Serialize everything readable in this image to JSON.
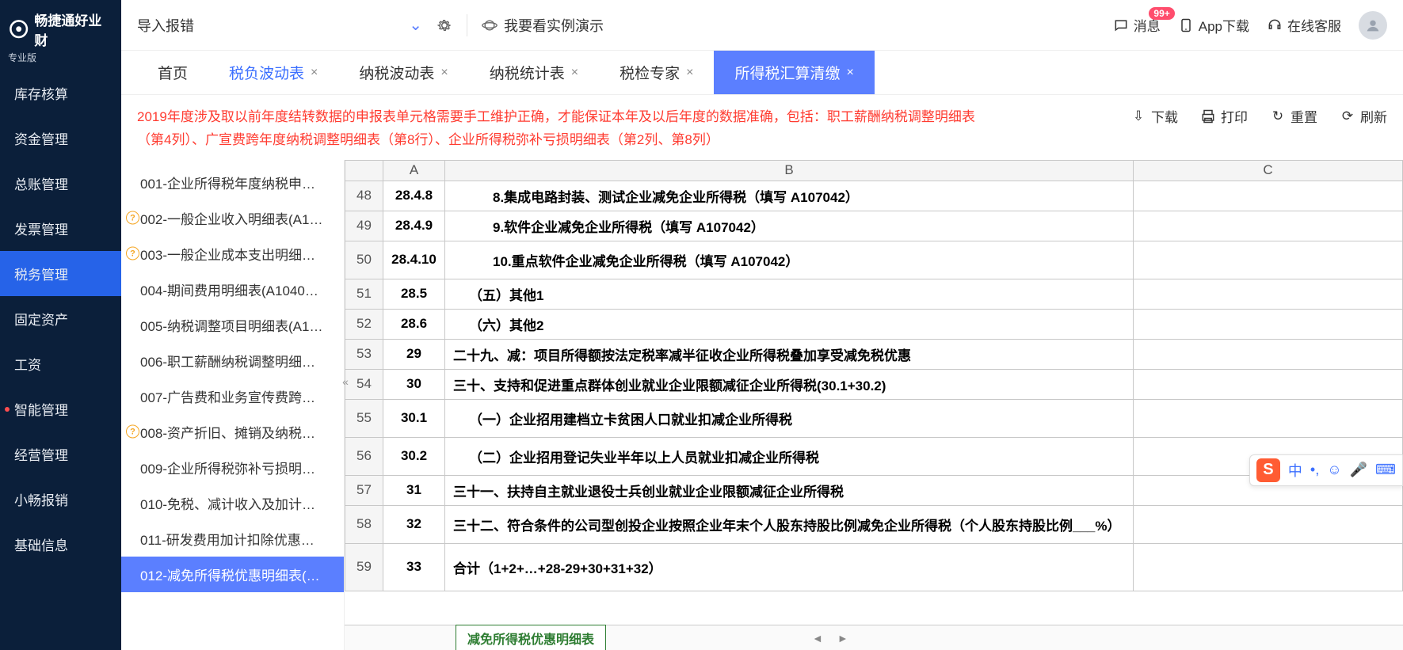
{
  "brand": {
    "name": "畅捷通好业财",
    "edition": "专业版"
  },
  "sidebar": {
    "items": [
      {
        "label": "库存核算",
        "active": false,
        "dot": false
      },
      {
        "label": "资金管理",
        "active": false,
        "dot": false
      },
      {
        "label": "总账管理",
        "active": false,
        "dot": false
      },
      {
        "label": "发票管理",
        "active": false,
        "dot": false
      },
      {
        "label": "税务管理",
        "active": true,
        "dot": false
      },
      {
        "label": "固定资产",
        "active": false,
        "dot": false
      },
      {
        "label": "工资",
        "active": false,
        "dot": false
      },
      {
        "label": "智能管理",
        "active": false,
        "dot": true
      },
      {
        "label": "经营管理",
        "active": false,
        "dot": false
      },
      {
        "label": "小畅报销",
        "active": false,
        "dot": false
      },
      {
        "label": "基础信息",
        "active": false,
        "dot": false
      }
    ]
  },
  "topbar": {
    "import_error": "导入报错",
    "demo": "我要看实例演示",
    "msg": "消息",
    "badge": "99+",
    "app": "App下载",
    "service": "在线客服"
  },
  "tabs": [
    {
      "label": "首页",
      "closable": false,
      "style": ""
    },
    {
      "label": "税负波动表",
      "closable": true,
      "style": "link"
    },
    {
      "label": "纳税波动表",
      "closable": true,
      "style": ""
    },
    {
      "label": "纳税统计表",
      "closable": true,
      "style": ""
    },
    {
      "label": "税检专家",
      "closable": true,
      "style": ""
    },
    {
      "label": "所得税汇算清缴",
      "closable": true,
      "style": "active"
    }
  ],
  "notice": "2019年度涉及取以前年度结转数据的申报表单元格需要手工维护正确，才能保证本年及以后年度的数据准确，包括：职工薪酬纳税调整明细表（第4列）、广宣费跨年度纳税调整明细表（第8行）、企业所得税弥补亏损明细表（第2列、第8列）",
  "actions": {
    "download": "下载",
    "print": "打印",
    "reset": "重置",
    "refresh": "刷新"
  },
  "tree": [
    {
      "label": "001-企业所得税年度纳税申…",
      "warn": false
    },
    {
      "label": "002-一般企业收入明细表(A1…",
      "warn": true
    },
    {
      "label": "003-一般企业成本支出明细…",
      "warn": true
    },
    {
      "label": "004-期间费用明细表(A1040…",
      "warn": false
    },
    {
      "label": "005-纳税调整项目明细表(A1…",
      "warn": false
    },
    {
      "label": "006-职工薪酬纳税调整明细…",
      "warn": false
    },
    {
      "label": "007-广告费和业务宣传费跨…",
      "warn": false
    },
    {
      "label": "008-资产折旧、摊销及纳税…",
      "warn": true
    },
    {
      "label": "009-企业所得税弥补亏损明…",
      "warn": false
    },
    {
      "label": "010-免税、减计收入及加计…",
      "warn": false
    },
    {
      "label": "011-研发费用加计扣除优惠…",
      "warn": false
    },
    {
      "label": "012-减免所得税优惠明细表(…",
      "warn": false,
      "selected": true
    }
  ],
  "sheet": {
    "columns": [
      "A",
      "B",
      "C"
    ],
    "rows": [
      {
        "n": "48",
        "a": "28.4.8",
        "b": "8.集成电路封装、测试企业减免企业所得税（填写 A107042）",
        "indent": 1
      },
      {
        "n": "49",
        "a": "28.4.9",
        "b": "9.软件企业减免企业所得税（填写 A107042）",
        "indent": 1
      },
      {
        "n": "50",
        "a": "28.4.10",
        "b": "10.重点软件企业减免企业所得税（填写 A107042）",
        "indent": 1,
        "tall": true
      },
      {
        "n": "51",
        "a": "28.5",
        "b": "（五）其他1",
        "indent": 2
      },
      {
        "n": "52",
        "a": "28.6",
        "b": "（六）其他2",
        "indent": 2
      },
      {
        "n": "53",
        "a": "29",
        "b": "二十九、减：项目所得额按法定税率减半征收企业所得税叠加享受减免税优惠",
        "indent": 0
      },
      {
        "n": "54",
        "a": "30",
        "b": "三十、支持和促进重点群体创业就业企业限额减征企业所得税(30.1+30.2)",
        "indent": 0
      },
      {
        "n": "55",
        "a": "30.1",
        "b": "（一）企业招用建档立卡贫困人口就业扣减企业所得税",
        "indent": 2,
        "tall": true
      },
      {
        "n": "56",
        "a": "30.2",
        "b": "（二）企业招用登记失业半年以上人员就业扣减企业所得税",
        "indent": 2,
        "tall": true
      },
      {
        "n": "57",
        "a": "31",
        "b": "三十一、扶持自主就业退役士兵创业就业企业限额减征企业所得税",
        "indent": 0
      },
      {
        "n": "58",
        "a": "32",
        "b": "三十二、符合条件的公司型创投企业按照企业年末个人股东持股比例减免企业所得税（个人股东持股比例___%）",
        "indent": 0,
        "tall": true
      },
      {
        "n": "59",
        "a": "33",
        "b": "合计（1+2+…+28-29+30+31+32）",
        "indent": 0,
        "xtall": true
      }
    ],
    "tab_label": "减免所得税优惠明细表"
  },
  "ime": {
    "logo": "S",
    "lang": "中"
  },
  "colors": {
    "sidebar_bg": "#0b1f3a",
    "primary": "#5b7fff",
    "accent": "#2663e8",
    "notice": "#ff3b30",
    "badge": "#ff4d6d"
  }
}
